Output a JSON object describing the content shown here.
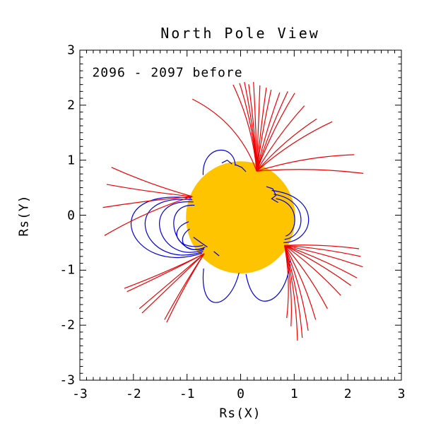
{
  "title": "North Pole View",
  "annotation": "2096 - 2097 before",
  "axes": {
    "xlabel": "Rs(X)",
    "ylabel": "Rs(Y)",
    "xlim": [
      -3,
      3
    ],
    "ylim": [
      -3,
      3
    ],
    "xticks": [
      "-3",
      "-2",
      "-1",
      "0",
      "1",
      "2",
      "3"
    ],
    "yticks": [
      "-3",
      "-2",
      "-1",
      "0",
      "1",
      "2",
      "3"
    ],
    "xtick_values": [
      -3,
      -2,
      -1,
      0,
      1,
      2,
      3
    ],
    "ytick_values": [
      -3,
      -2,
      -1,
      0,
      1,
      2,
      3
    ],
    "minor_divisions": 8,
    "grid": false,
    "legend": "none"
  },
  "colors": {
    "background": "#ffffff",
    "axis": "#000000",
    "sun": "#ffc400",
    "open_field": "#ee0000",
    "closed_field": "#0000e0"
  },
  "chart_data": {
    "type": "line",
    "title": "North Pole View",
    "subtitle": "2096 - 2097 before",
    "xlabel": "Rs(X)",
    "ylabel": "Rs(Y)",
    "xlim": [
      -3,
      3
    ],
    "ylim": [
      -3,
      3
    ],
    "description": "Solar coronal magnetic field lines viewed from above the north pole; yellow disk is the Sun (radius 1 Rs), red curves are open field lines fanning out from four limb footpoints, blue curves are closed loops near the limb.",
    "sun": {
      "cx": 0,
      "cy": -0.04,
      "r": 1.02
    },
    "open_bundles": [
      {
        "name": "north-east-bundle",
        "foot": [
          0.3,
          0.8
        ],
        "lines": [
          {
            "end": [
              -0.9,
              2.11
            ],
            "bend": -0.35
          },
          {
            "end": [
              -0.14,
              2.37
            ],
            "bend": -0.15
          },
          {
            "end": [
              -0.02,
              2.4
            ],
            "bend": -0.1
          },
          {
            "end": [
              0.07,
              2.42
            ],
            "bend": -0.06
          },
          {
            "end": [
              0.15,
              2.38
            ],
            "bend": -0.04
          },
          {
            "end": [
              0.24,
              2.42
            ],
            "bend": -0.02
          },
          {
            "end": [
              0.36,
              2.36
            ],
            "bend": 0
          },
          {
            "end": [
              0.48,
              2.32
            ],
            "bend": 0.02
          },
          {
            "end": [
              0.57,
              2.28
            ],
            "bend": 0.03
          },
          {
            "end": [
              0.73,
              2.23
            ],
            "bend": 0.05
          },
          {
            "end": [
              0.88,
              2.25
            ],
            "bend": 0.06
          },
          {
            "end": [
              1.01,
              2.22
            ],
            "bend": 0.08
          },
          {
            "end": [
              1.19,
              1.99
            ],
            "bend": 0.08
          },
          {
            "end": [
              1.42,
              1.75
            ],
            "bend": 0.1
          },
          {
            "end": [
              1.71,
              1.7
            ],
            "bend": 0.12
          },
          {
            "end": [
              2.12,
              1.1
            ],
            "bend": 0.12
          },
          {
            "end": [
              2.29,
              0.76
            ],
            "bend": 0.1
          }
        ]
      },
      {
        "name": "west-bundle",
        "foot": [
          -0.9,
          0.34
        ],
        "lines": [
          {
            "end": [
              -2.41,
              0.87
            ],
            "bend": 0.06
          },
          {
            "end": [
              -2.5,
              0.56
            ],
            "bend": 0.03
          },
          {
            "end": [
              -2.57,
              0.14
            ],
            "bend": -0.03
          },
          {
            "end": [
              -2.54,
              -0.37
            ],
            "bend": -0.1
          }
        ]
      },
      {
        "name": "south-west-bundle",
        "foot": [
          -0.68,
          -0.7
        ],
        "lines": [
          {
            "end": [
              -2.17,
              -1.33
            ],
            "bend": 0.04
          },
          {
            "end": [
              -2.12,
              -1.39
            ],
            "bend": 0.02
          },
          {
            "end": [
              -1.89,
              -1.7
            ],
            "bend": 0
          },
          {
            "end": [
              -1.84,
              -1.78
            ],
            "bend": 0
          },
          {
            "end": [
              -1.42,
              -1.9
            ],
            "bend": -0.03
          },
          {
            "end": [
              -1.38,
              -1.95
            ],
            "bend": -0.04
          }
        ]
      },
      {
        "name": "south-east-bundle",
        "foot": [
          0.82,
          -0.55
        ],
        "lines": [
          {
            "end": [
              2.21,
              -0.61
            ],
            "bend": 0.06
          },
          {
            "end": [
              2.24,
              -0.75
            ],
            "bend": 0.05
          },
          {
            "end": [
              2.28,
              -0.94
            ],
            "bend": 0.05
          },
          {
            "end": [
              2.17,
              -1.14
            ],
            "bend": 0.06
          },
          {
            "end": [
              2.06,
              -1.28
            ],
            "bend": 0.06
          },
          {
            "end": [
              1.87,
              -1.46
            ],
            "bend": 0.07
          },
          {
            "end": [
              1.62,
              -1.7
            ],
            "bend": 0.08
          },
          {
            "end": [
              1.4,
              -1.9
            ],
            "bend": 0.09
          },
          {
            "end": [
              1.26,
              -2.1
            ],
            "bend": 0.1
          },
          {
            "end": [
              1.15,
              -2.23
            ],
            "bend": 0.1
          },
          {
            "end": [
              1.06,
              -2.28
            ],
            "bend": 0.1
          },
          {
            "end": [
              0.94,
              -2.02
            ],
            "bend": 0.1
          },
          {
            "end": [
              0.86,
              -1.87
            ],
            "bend": 0.1
          }
        ]
      }
    ],
    "closed_loops": [
      {
        "p0": [
          -0.7,
          0.73
        ],
        "c1": [
          -0.72,
          1.28
        ],
        "c2": [
          -0.12,
          1.32
        ],
        "p1": [
          -0.1,
          0.9
        ]
      },
      {
        "p0": [
          -0.92,
          0.31
        ],
        "c1": [
          -2.75,
          0.52
        ],
        "c2": [
          -2.1,
          -1.15
        ],
        "p1": [
          -0.72,
          -0.69
        ]
      },
      {
        "p0": [
          -0.9,
          0.28
        ],
        "c1": [
          -2.35,
          0.42
        ],
        "c2": [
          -1.82,
          -1.05
        ],
        "p1": [
          -0.7,
          -0.66
        ]
      },
      {
        "p0": [
          -0.88,
          0.24
        ],
        "c1": [
          -1.95,
          0.32
        ],
        "c2": [
          -1.52,
          -0.95
        ],
        "p1": [
          -0.68,
          -0.62
        ]
      },
      {
        "p0": [
          -0.86,
          0.18
        ],
        "c1": [
          -1.55,
          0.22
        ],
        "c2": [
          -1.22,
          -0.85
        ],
        "p1": [
          -0.66,
          -0.58
        ]
      },
      {
        "p0": [
          -0.97,
          -0.12
        ],
        "c1": [
          -1.38,
          -0.26
        ],
        "c2": [
          -1.18,
          -0.66
        ],
        "p1": [
          -0.7,
          -0.55
        ]
      },
      {
        "p0": [
          -0.95,
          -0.25
        ],
        "c1": [
          -1.22,
          -0.42
        ],
        "c2": [
          -1.06,
          -0.72
        ],
        "p1": [
          -0.68,
          -0.6
        ]
      },
      {
        "p0": [
          -0.69,
          -0.97
        ],
        "c1": [
          -0.78,
          -1.8
        ],
        "c2": [
          -0.22,
          -1.76
        ],
        "p1": [
          -0.03,
          -1.05
        ]
      },
      {
        "p0": [
          0.1,
          -1.07
        ],
        "c1": [
          0.26,
          -1.92
        ],
        "c2": [
          0.88,
          -1.56
        ],
        "p1": [
          0.92,
          -0.83
        ]
      },
      {
        "p0": [
          0.58,
          0.45
        ],
        "c1": [
          1.52,
          0.34
        ],
        "c2": [
          1.4,
          -0.48
        ],
        "p1": [
          0.8,
          -0.5
        ]
      },
      {
        "p0": [
          0.62,
          0.38
        ],
        "c1": [
          1.3,
          0.28
        ],
        "c2": [
          1.22,
          -0.4
        ],
        "p1": [
          0.82,
          -0.44
        ]
      },
      {
        "p0": [
          0.66,
          0.3
        ],
        "c1": [
          1.13,
          0.22
        ],
        "c2": [
          1.06,
          -0.32
        ],
        "p1": [
          0.84,
          -0.38
        ]
      }
    ],
    "limb_squiggles": [
      [
        [
          -0.35,
          0.95
        ],
        [
          -0.25,
          1.0
        ],
        [
          -0.16,
          0.93
        ]
      ],
      [
        [
          -0.1,
          0.92
        ],
        [
          0.02,
          0.87
        ],
        [
          0.1,
          0.79
        ]
      ],
      [
        [
          0.48,
          0.52
        ],
        [
          0.6,
          0.48
        ],
        [
          0.66,
          0.36
        ],
        [
          0.58,
          0.3
        ],
        [
          0.7,
          0.23
        ]
      ],
      [
        [
          -0.88,
          -0.4
        ],
        [
          -0.74,
          -0.5
        ],
        [
          -0.62,
          -0.58
        ]
      ],
      [
        [
          -0.5,
          -0.66
        ],
        [
          -0.4,
          -0.74
        ]
      ]
    ]
  }
}
